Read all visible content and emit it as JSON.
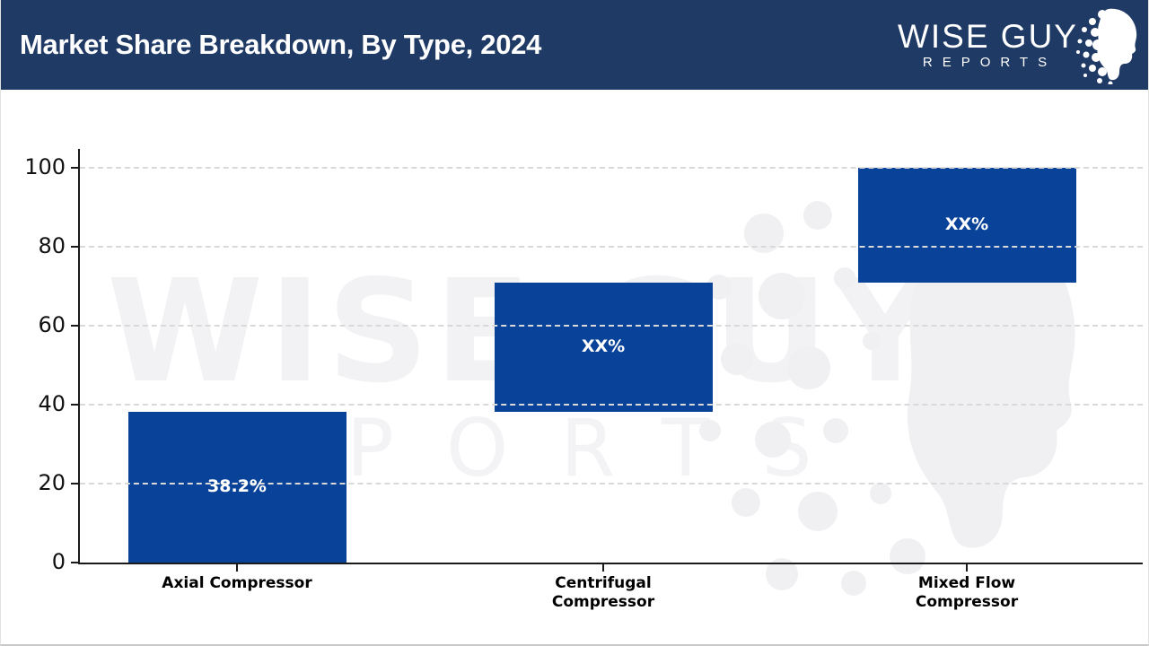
{
  "header": {
    "title": "Market Share Breakdown, By Type, 2024",
    "brand": {
      "line1": "WISE GUY",
      "line2": "REPORTS"
    },
    "colors": {
      "background": "#203a66",
      "text": "#ffffff"
    }
  },
  "watermark": {
    "line1": "WISE GUY",
    "line2": "REPORTS"
  },
  "chart_data": {
    "type": "bar",
    "variant": "stacked-waterfall",
    "title": "Market Share Breakdown, By Type, 2024",
    "categories": [
      {
        "lines": [
          "Axial Compressor"
        ]
      },
      {
        "lines": [
          "Centrifugal",
          "Compressor"
        ]
      },
      {
        "lines": [
          "Mixed Flow",
          "Compressor"
        ]
      }
    ],
    "segments": [
      {
        "category": "Axial Compressor",
        "start": 0,
        "end": 38.2,
        "label": "38.2%"
      },
      {
        "category": "Centrifugal Compressor",
        "start": 38.2,
        "end": 70.8,
        "label": "XX%"
      },
      {
        "category": "Mixed Flow Compressor",
        "start": 70.8,
        "end": 100,
        "label": "XX%"
      }
    ],
    "yticks": [
      0,
      20,
      40,
      60,
      80,
      100
    ],
    "ylim": [
      0,
      104
    ],
    "grid": {
      "horizontal": true,
      "style": "dashed",
      "color": "#d9d9d9",
      "above_bars": true
    },
    "colors": {
      "bar": "#084299",
      "bar_label": "#ffffff",
      "axis": "#1a1a1a",
      "tick_label": "#111111"
    },
    "legend": "none"
  }
}
